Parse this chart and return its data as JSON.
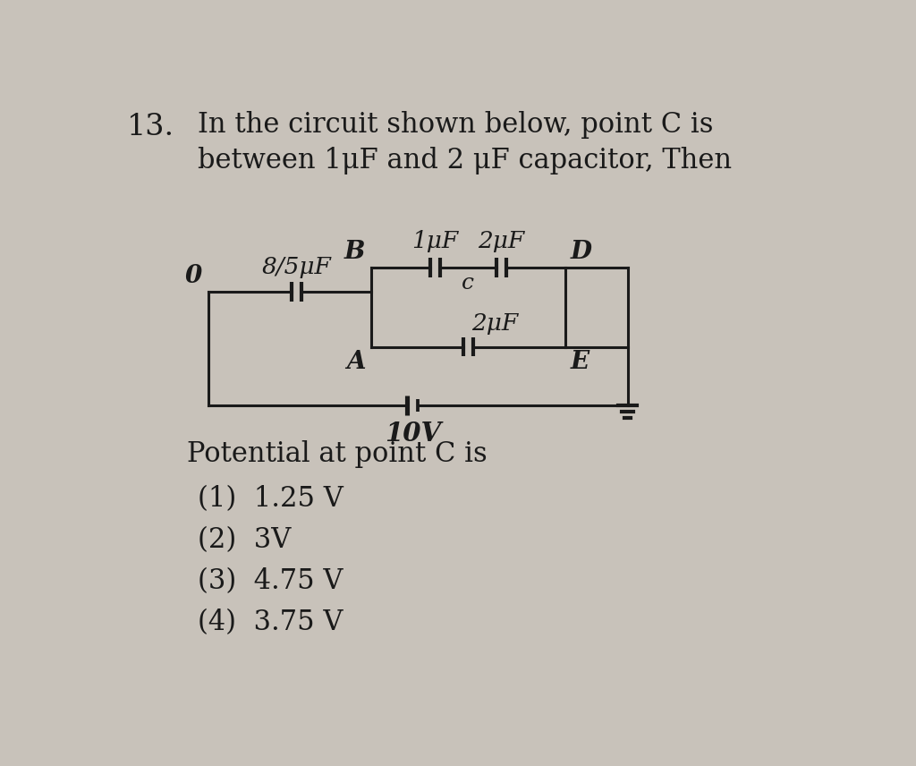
{
  "bg_color": "#c8c2ba",
  "text_color": "#1a1a1a",
  "line_color": "#1a1a1a",
  "title_number": "13.",
  "title_line1": "In the circuit shown below, point C is",
  "title_line2": "between 1μF and 2 μF capacitor, Then",
  "question_text": "Potential at point C is",
  "options": [
    "(1)  1.25 V",
    "(2)  3V",
    "(3)  4.75 V",
    "(4)  3.75 V"
  ],
  "circuit": {
    "O_label": "0",
    "B_label": "B",
    "A_label": "A",
    "C_label": "c",
    "D_label": "D",
    "E_label": "E",
    "cap_85": "8/5μF",
    "cap_1": "1μF",
    "cap_2top": "2μF",
    "cap_2mid": "2μF",
    "voltage": "10V"
  }
}
